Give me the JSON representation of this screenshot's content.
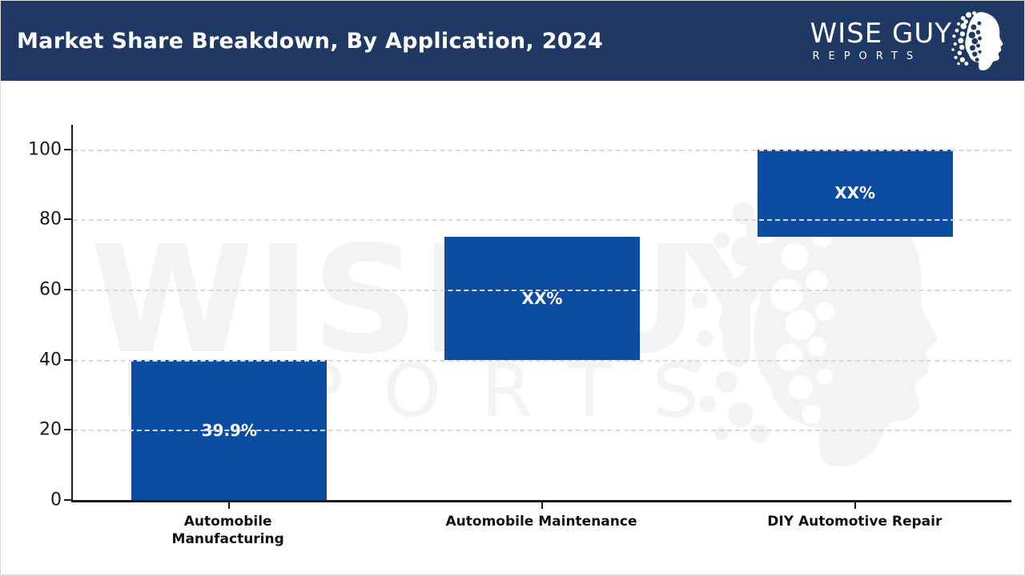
{
  "header": {
    "title": "Market Share Breakdown, By Application, 2024",
    "brand": {
      "name": "WISE GUY",
      "subtitle": "REPORTS"
    }
  },
  "watermark": {
    "primary": "WISE",
    "secondary": [
      "G",
      "U",
      "Y"
    ],
    "tertiary": "REPORTS"
  },
  "chart_data": {
    "type": "bar",
    "subtype": "floating-segment-waterfall",
    "title": "Market Share Breakdown, By Application, 2024",
    "categories": [
      "Automobile Manufacturing",
      "Automobile Maintenance",
      "DIY Automotive Repair"
    ],
    "series": [
      {
        "name": "Market share (%)",
        "segments": [
          {
            "category": "Automobile Manufacturing",
            "start": 0,
            "end": 39.9,
            "label": "39.9%"
          },
          {
            "category": "Automobile Maintenance",
            "start": 40,
            "end": 75,
            "label": "XX%"
          },
          {
            "category": "DIY Automotive Repair",
            "start": 75,
            "end": 100,
            "label": "XX%"
          }
        ]
      }
    ],
    "xlabel": "",
    "ylabel": "",
    "yticks": [
      0,
      20,
      40,
      60,
      80,
      100
    ],
    "ylim": [
      0,
      107
    ],
    "grid": "horizontal-dashed",
    "legend": "none",
    "colors": {
      "bar": "#0c4da2",
      "bar_label": "#ffffff",
      "axis": "#1a1a1a",
      "grid": "#d9d9d9",
      "header_bg": "#1f3864",
      "watermark": "#f3f3f5"
    }
  }
}
